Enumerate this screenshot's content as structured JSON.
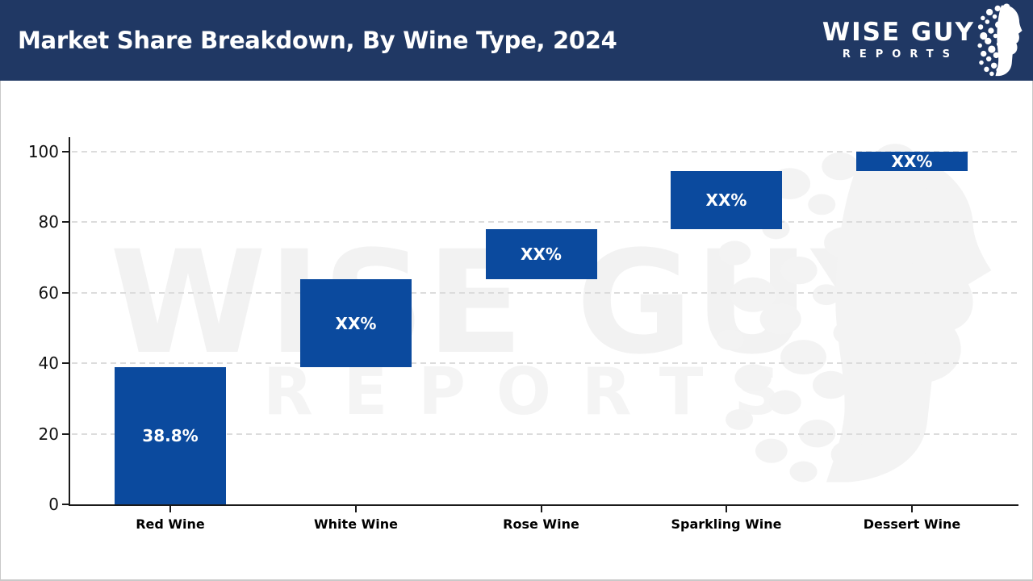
{
  "header": {
    "title": "Market Share Breakdown, By Wine Type, 2024",
    "logo": {
      "line1": "WISE GUY",
      "line2": "REPORTS"
    }
  },
  "watermark": {
    "line1": "WISE GUY",
    "line2": "REPORTS"
  },
  "chart_data": {
    "type": "bar",
    "subtype": "waterfall",
    "title": "Market Share Breakdown, By Wine Type, 2024",
    "categories": [
      "Red Wine",
      "White Wine",
      "Rose Wine",
      "Sparkling Wine",
      "Dessert Wine"
    ],
    "segments": [
      {
        "category": "Red Wine",
        "start": 0,
        "end": 38.8,
        "label": "38.8%"
      },
      {
        "category": "White Wine",
        "start": 38.8,
        "end": 63.8,
        "label": "XX%"
      },
      {
        "category": "Rose Wine",
        "start": 63.8,
        "end": 77.9,
        "label": "XX%"
      },
      {
        "category": "Sparkling Wine",
        "start": 77.9,
        "end": 94.4,
        "label": "XX%"
      },
      {
        "category": "Dessert Wine",
        "start": 94.4,
        "end": 100,
        "label": "XX%"
      }
    ],
    "xlabel": "",
    "ylabel": "",
    "ylim": [
      0,
      100
    ],
    "yticks": [
      0,
      20,
      40,
      60,
      80,
      100
    ],
    "grid": "dashed-horizontal",
    "legend": "none",
    "colors": {
      "bar": "#0b4a9e",
      "bar_label": "#ffffff",
      "header_bg": "#203864",
      "gridline": "#dcdcdc",
      "axis": "#1a1a1a",
      "watermark": "#f2f2f2"
    }
  }
}
